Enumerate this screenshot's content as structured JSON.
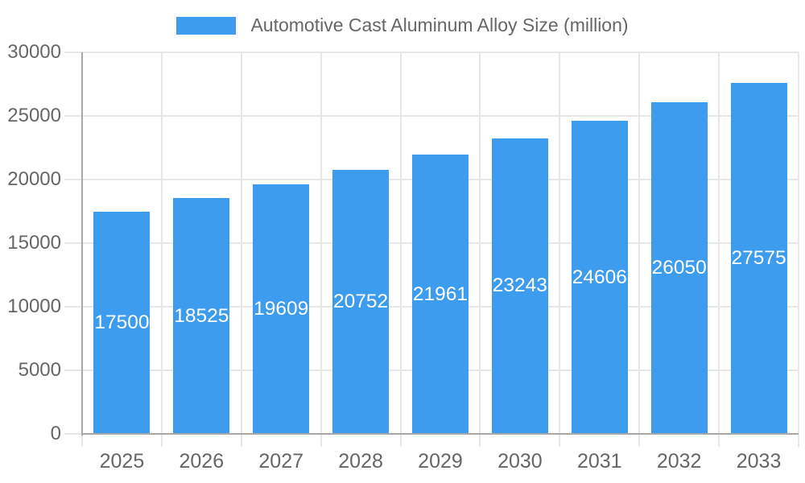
{
  "legend": {
    "label": "Automotive Cast Aluminum Alloy Size (million)"
  },
  "chart_data": {
    "type": "bar",
    "title": "Automotive Cast Aluminum Alloy Size (million)",
    "series_name": "Automotive Cast Aluminum Alloy Size (million)",
    "categories": [
      "2025",
      "2026",
      "2027",
      "2028",
      "2029",
      "2030",
      "2031",
      "2032",
      "2033"
    ],
    "values": [
      17500,
      18525,
      19609,
      20752,
      21961,
      23243,
      24606,
      26050,
      27575
    ],
    "xlabel": "",
    "ylabel": "",
    "ylim": [
      0,
      30000
    ],
    "yticks": [
      0,
      5000,
      10000,
      15000,
      20000,
      25000,
      30000
    ],
    "grid": true,
    "legend_position": "top",
    "value_labels": "inside-center-white"
  },
  "colors": {
    "bar": "#3E9CEE",
    "grid": "#E7E7E7",
    "axis": "#A8A8A8",
    "text": "#666666",
    "value_label": "#FFFFFF",
    "background": "#FFFFFF"
  }
}
